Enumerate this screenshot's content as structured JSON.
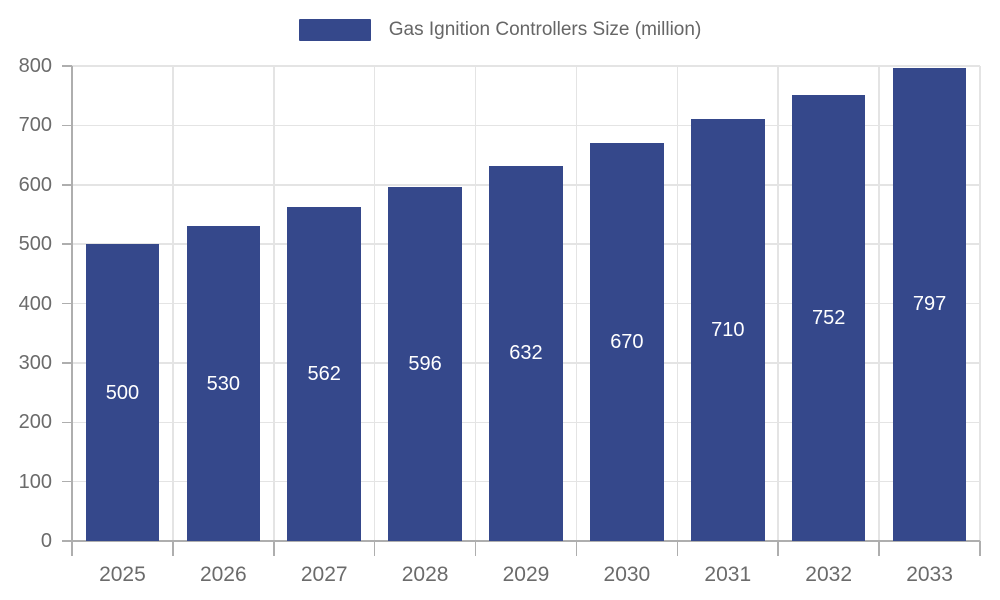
{
  "legend": {
    "label": "Gas Ignition Controllers Size (million)"
  },
  "chart_data": {
    "type": "bar",
    "title": "",
    "categories": [
      "2025",
      "2026",
      "2027",
      "2028",
      "2029",
      "2030",
      "2031",
      "2032",
      "2033"
    ],
    "series": [
      {
        "name": "Gas Ignition Controllers Size (million)",
        "values": [
          500,
          530,
          562,
          596,
          632,
          670,
          710,
          752,
          797
        ]
      }
    ],
    "xlabel": "",
    "ylabel": "",
    "ylim": [
      0,
      800
    ],
    "y_tick_step": 100,
    "y_tick_labels": [
      "0",
      "100",
      "200",
      "300",
      "400",
      "500",
      "600",
      "700",
      "800"
    ],
    "grid": "both",
    "legend_position": "top-center",
    "value_label_position": "inside-center"
  },
  "style": {
    "bar_color": "#35488b",
    "grid_color": "#e4e4e4",
    "axis_color": "#aeaeae",
    "tick_label_color": "#6b6b6b",
    "legend_text_color": "#666666",
    "value_label_color": "#ffffff",
    "background_color": "#ffffff"
  }
}
